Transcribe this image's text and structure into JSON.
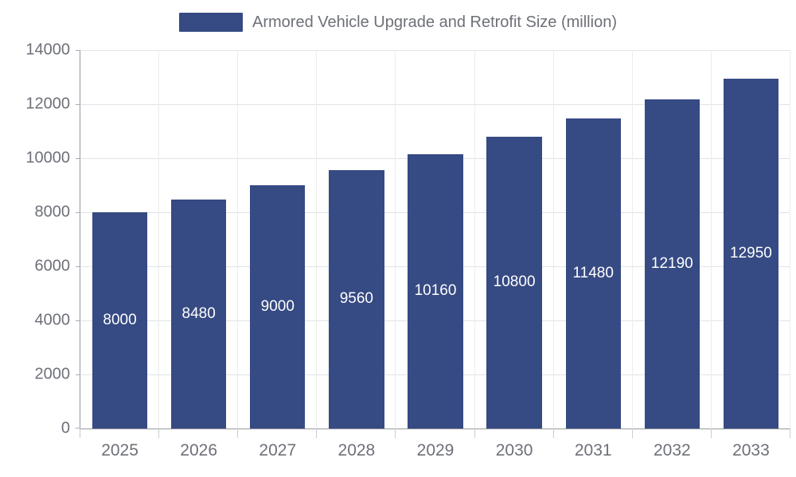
{
  "chart_data": {
    "type": "bar",
    "title": "Armored Vehicle Upgrade and Retrofit Size (million)",
    "categories": [
      "2025",
      "2026",
      "2027",
      "2028",
      "2029",
      "2030",
      "2031",
      "2032",
      "2033"
    ],
    "series": [
      {
        "name": "Armored Vehicle Upgrade and Retrofit Size (million)",
        "values": [
          8000,
          8480,
          9000,
          9560,
          10160,
          10800,
          11480,
          12190,
          12950
        ]
      }
    ],
    "xlabel": "",
    "ylabel": "",
    "ylim": [
      0,
      14000
    ],
    "ytick_step": 2000,
    "ytick_labels": [
      "0",
      "2000",
      "4000",
      "6000",
      "8000",
      "10000",
      "12000",
      "14000"
    ],
    "bar_value_labels": [
      "8000",
      "8480",
      "9000",
      "9560",
      "10160",
      "10800",
      "11480",
      "12190",
      "12950"
    ],
    "grid": true,
    "legend_position": "top-center",
    "colors": {
      "bar": "#364A83",
      "bar_label": "#FFFFFF",
      "axis_text": "#6E7079",
      "axis_line": "#95989E",
      "y_tick": "#A8ACB3",
      "x_tick": "#C9CCD1",
      "gridline_h": "#E0E3E8",
      "gridline_v": "#EAECEF",
      "background": "#FFFFFF"
    }
  }
}
